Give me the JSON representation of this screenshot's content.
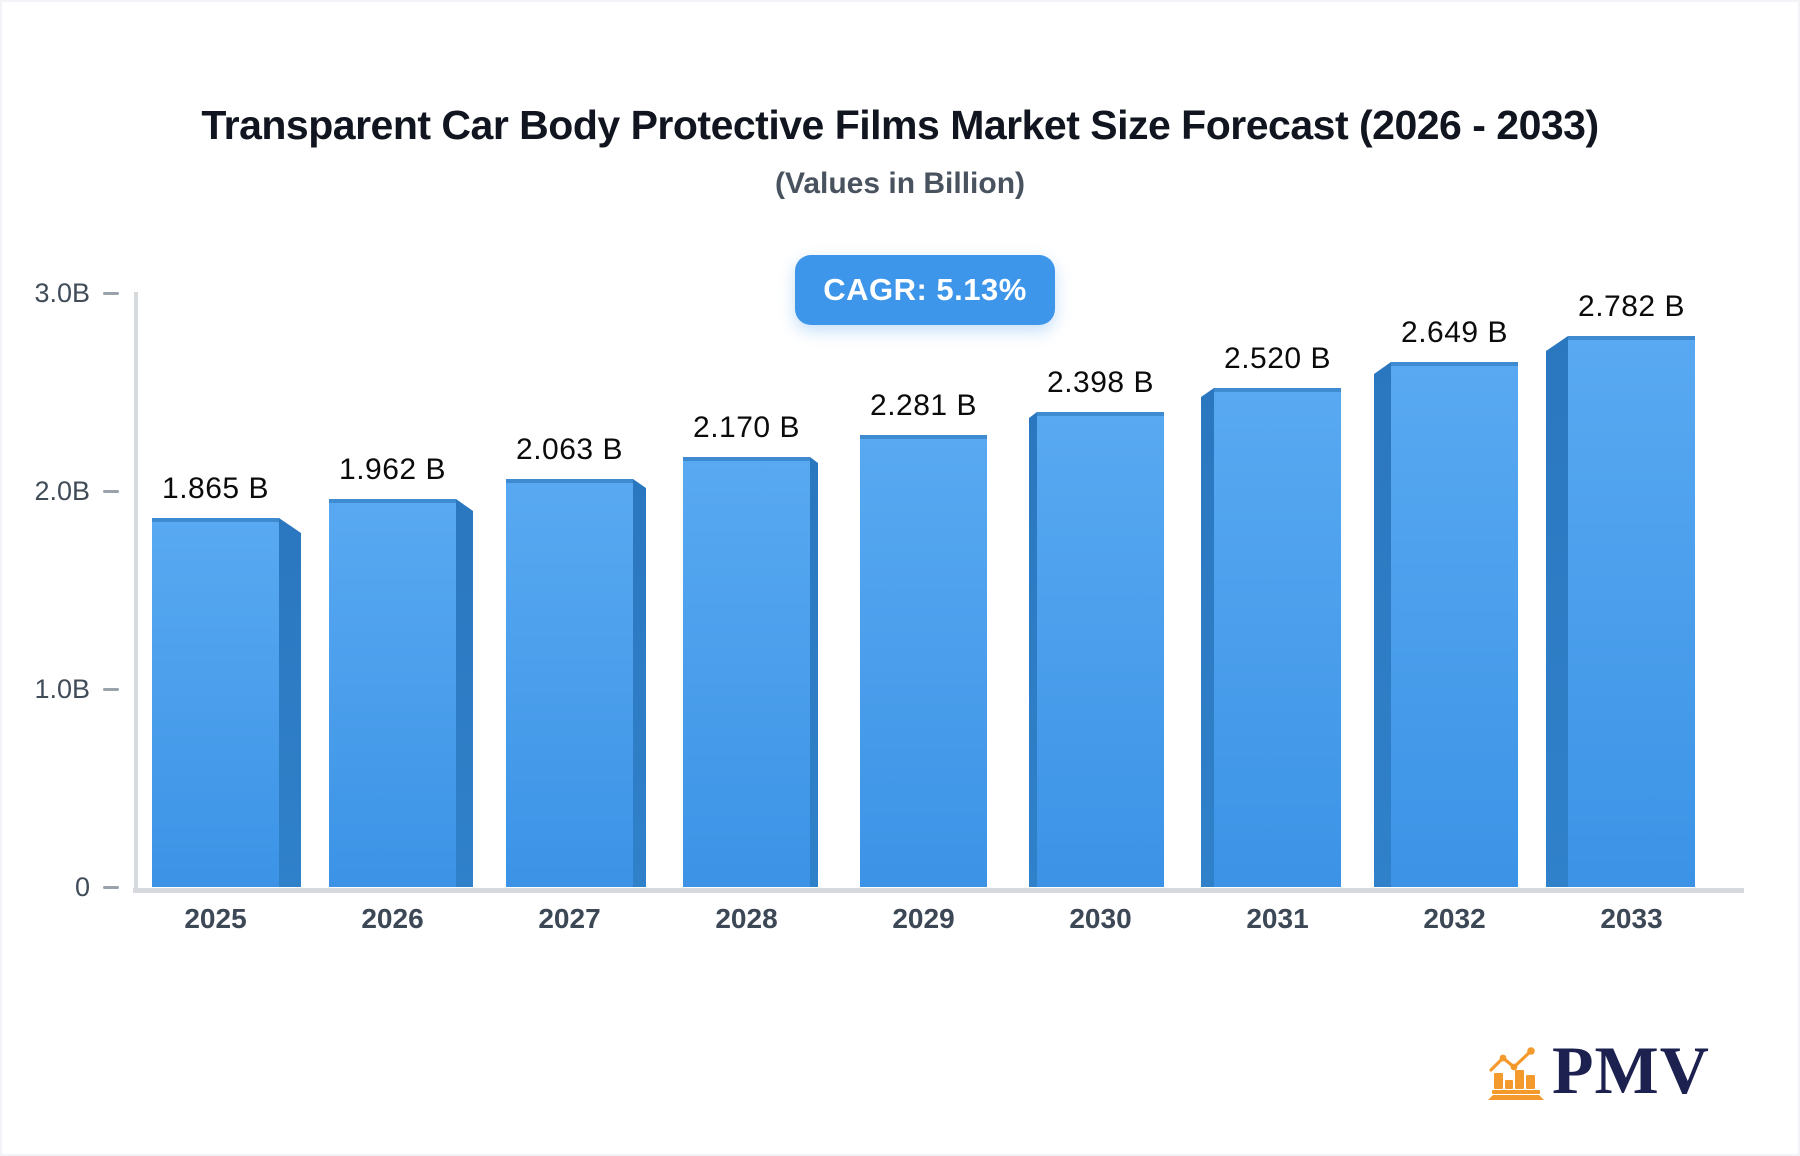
{
  "cagr_badge": "CAGR: 5.13%",
  "brand": {
    "name": "PMV"
  },
  "colors": {
    "bar_front_top": "#58a9f1",
    "bar_front_bottom": "#3c93e6",
    "bar_top_edge": "#3e8bd1",
    "bar_side_top": "#2b77bf",
    "bar_side_bottom": "#2f81ca",
    "badge_bg": "#3d96ea",
    "axis_line": "#d6d9dd",
    "tick_dash": "#9aa3ac",
    "logo_orange": "#f49a2c",
    "logo_navy": "#1c2150"
  },
  "chart_data": {
    "type": "bar",
    "title": "Transparent Car Body Protective Films Market Size Forecast (2026 - 2033)",
    "subtitle": "(Values in Billion)",
    "annotation": "CAGR: 5.13%",
    "categories": [
      "2025",
      "2026",
      "2027",
      "2028",
      "2029",
      "2030",
      "2031",
      "2032",
      "2033"
    ],
    "values": [
      1.865,
      1.962,
      2.063,
      2.17,
      2.281,
      2.398,
      2.52,
      2.649,
      2.782
    ],
    "value_labels": [
      "1.865 B",
      "1.962 B",
      "2.063 B",
      "2.170 B",
      "2.281 B",
      "2.398 B",
      "2.520 B",
      "2.649 B",
      "2.782 B"
    ],
    "y_ticks": [
      {
        "label": "0",
        "value": 0
      },
      {
        "label": "1.0B",
        "value": 1
      },
      {
        "label": "2.0B",
        "value": 2
      },
      {
        "label": "3.0B",
        "value": 3
      }
    ],
    "ylim": [
      0,
      3.0
    ],
    "grid": false,
    "legend": false,
    "bar_style": "3d-perspective"
  }
}
